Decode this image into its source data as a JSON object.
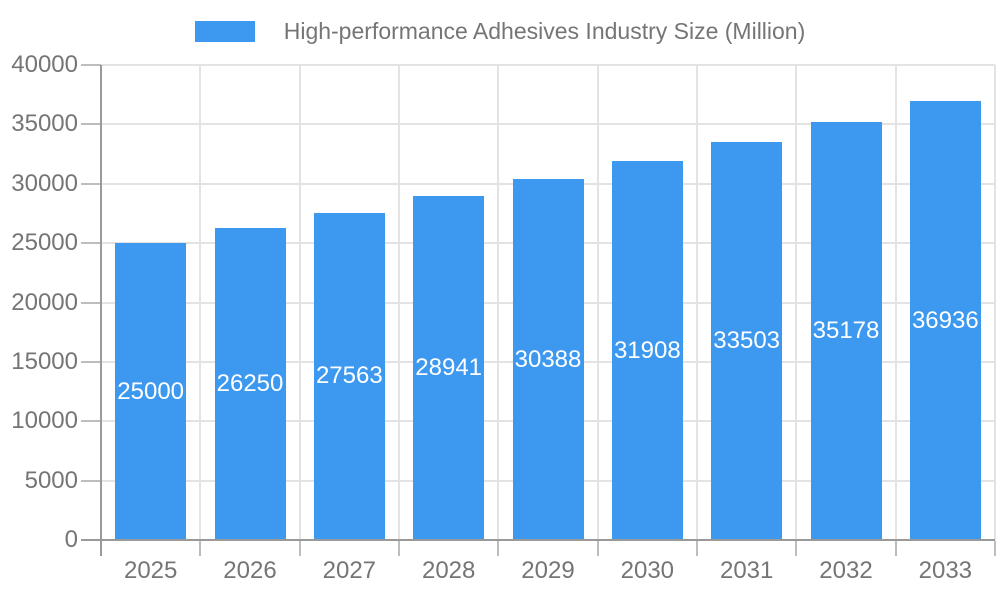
{
  "chart_data": {
    "type": "bar",
    "title": "High-performance Adhesives Industry Size (Million)",
    "categories": [
      "2025",
      "2026",
      "2027",
      "2028",
      "2029",
      "2030",
      "2031",
      "2032",
      "2033"
    ],
    "values": [
      25000,
      26250,
      27563,
      28941,
      30388,
      31908,
      33503,
      35178,
      36936
    ],
    "series": [
      {
        "name": "High-performance Adhesives Industry Size (Million)",
        "values": [
          25000,
          26250,
          27563,
          28941,
          30388,
          31908,
          33503,
          35178,
          36936
        ]
      }
    ],
    "xlabel": "",
    "ylabel": "",
    "ylim": [
      0,
      40000
    ],
    "ytick_step": 5000,
    "ytick_labels": [
      "0",
      "5000",
      "10000",
      "15000",
      "20000",
      "25000",
      "30000",
      "35000",
      "40000"
    ],
    "grid": true,
    "legend_position": "top-center",
    "value_label_position": "inside-center",
    "colors": {
      "bar": "#3D99F0",
      "axis_text": "#757575",
      "axis_line": "#999999",
      "gridline": "#E3E3E3",
      "value_label": "#FFFFFF",
      "background": "#FFFFFF"
    }
  },
  "legend": {
    "label": "High-performance Adhesives Industry Size (Million)"
  }
}
